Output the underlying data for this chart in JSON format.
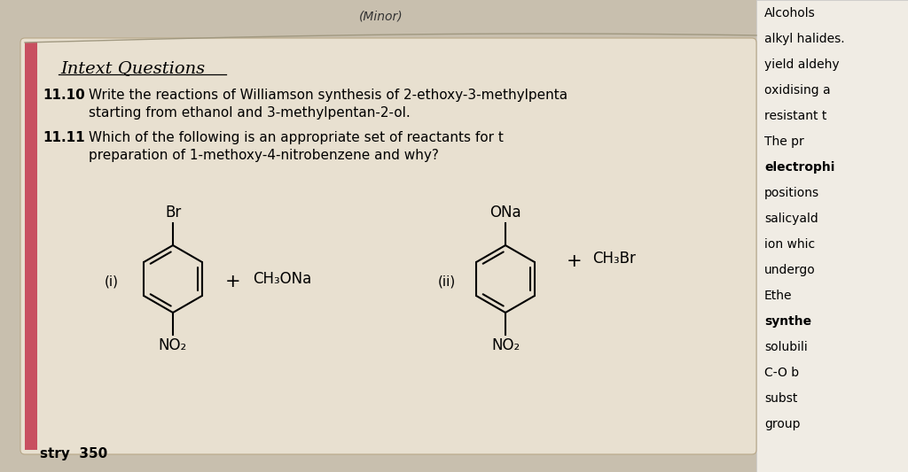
{
  "bg_color": "#c8bfae",
  "content_bg": "#e8e0d0",
  "right_panel_color": "#f0ece4",
  "title": "Intext Questions",
  "q1_num": "11.10",
  "q1_text": "Write the reactions of Williamson synthesis of 2-ethoxy-3-methylpenta",
  "q1_text2": "starting from ethanol and 3-methylpentan-2‐ol.",
  "q2_num": "11.11",
  "q2_text": "Which of the following is an appropriate set of reactants for t",
  "q2_text2": "preparation of 1‐methoxy‐4‐nitrobenzene and why?",
  "label_i": "(i)",
  "label_ii": "(ii)",
  "plus1": "+",
  "plus2": "+",
  "reagent1": "CH₃ONa",
  "reagent2": "CH₃Br",
  "sub1_top": "Br",
  "sub1_bottom": "NO₂",
  "sub2_top": "ONa",
  "sub2_bottom": "NO₂",
  "right_texts": [
    {
      "text": "Alcohols",
      "bold": false,
      "size": 10
    },
    {
      "text": "alkyl halides.",
      "bold": false,
      "size": 10
    },
    {
      "text": "yield aldehy",
      "bold": false,
      "size": 10
    },
    {
      "text": "oxidising a",
      "bold": false,
      "size": 10
    },
    {
      "text": "resistant t",
      "bold": false,
      "size": 10
    },
    {
      "text": "The pr",
      "bold": false,
      "size": 10
    },
    {
      "text": "electrophi",
      "bold": true,
      "size": 10
    },
    {
      "text": "positions",
      "bold": false,
      "size": 10
    },
    {
      "text": "salicyald",
      "bold": false,
      "size": 10
    },
    {
      "text": "ion whic",
      "bold": false,
      "size": 10
    },
    {
      "text": "undergo",
      "bold": false,
      "size": 10
    },
    {
      "text": "Ethe",
      "bold": false,
      "size": 10
    },
    {
      "text": "synthe",
      "bold": true,
      "size": 10
    },
    {
      "text": "solubili",
      "bold": false,
      "size": 10
    },
    {
      "text": "C-O b",
      "bold": false,
      "size": 10
    },
    {
      "text": "subst",
      "bold": false,
      "size": 10
    },
    {
      "text": "group",
      "bold": false,
      "size": 10
    }
  ],
  "bottom_left": "stry  350",
  "top_center": "(Minor)"
}
